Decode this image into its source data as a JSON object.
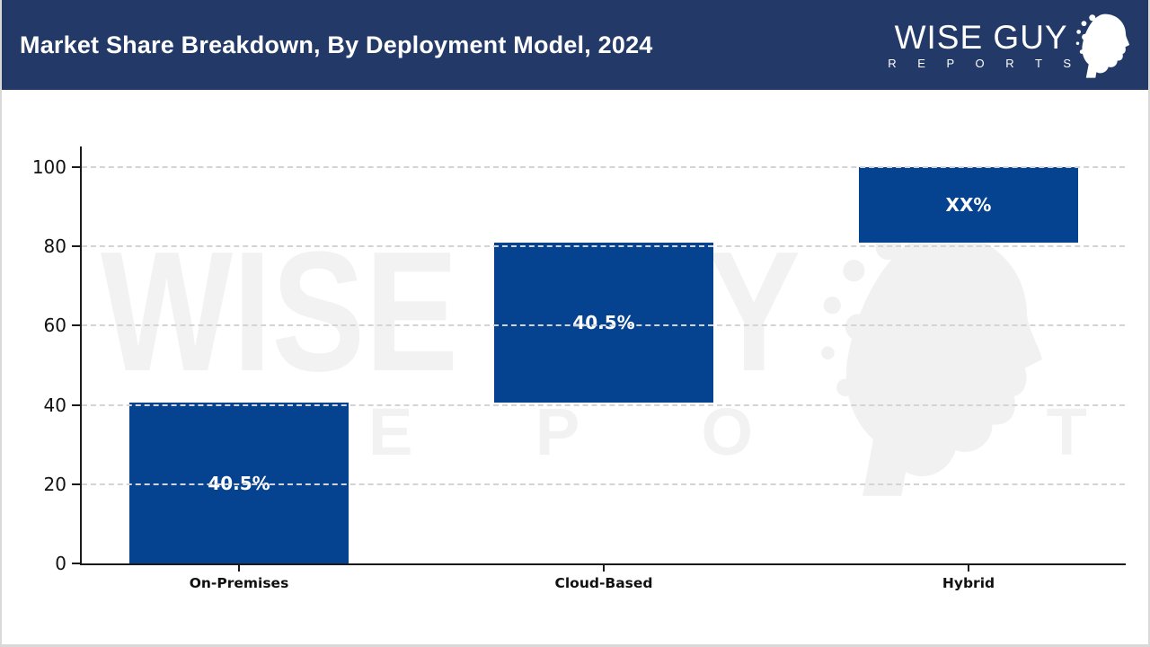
{
  "header": {
    "title": "Market Share Breakdown, By Deployment Model, 2024",
    "logo": {
      "word": "WISE GUY",
      "sub": "R E P O R T S"
    }
  },
  "watermark": {
    "word": "WISE GUY",
    "sub": "R E P O R T S"
  },
  "colors": {
    "header_bg": "#233a68",
    "bar": "#05428f",
    "grid": "#d4d4d4",
    "axis": "#1a1a1a",
    "watermark": "#f2f2f3",
    "value_label": "#ffffff"
  },
  "chart_data": {
    "type": "bar",
    "subtype": "waterfall",
    "title": "Market Share Breakdown, By Deployment Model, 2024",
    "categories": [
      "On-Premises",
      "Cloud-Based",
      "Hybrid"
    ],
    "segments": [
      {
        "category": "On-Premises",
        "start": 0,
        "end": 40.5,
        "label": "40.5%"
      },
      {
        "category": "Cloud-Based",
        "start": 40.5,
        "end": 81,
        "label": "40.5%"
      },
      {
        "category": "Hybrid",
        "start": 81,
        "end": 100,
        "label": "XX%"
      }
    ],
    "xlabel": "",
    "ylabel": "",
    "ylim": [
      0,
      105
    ],
    "yticks": [
      0,
      20,
      40,
      60,
      80,
      100
    ],
    "grid": "horizontal-dashed",
    "legend": "none",
    "bar_color": "#05428f"
  }
}
